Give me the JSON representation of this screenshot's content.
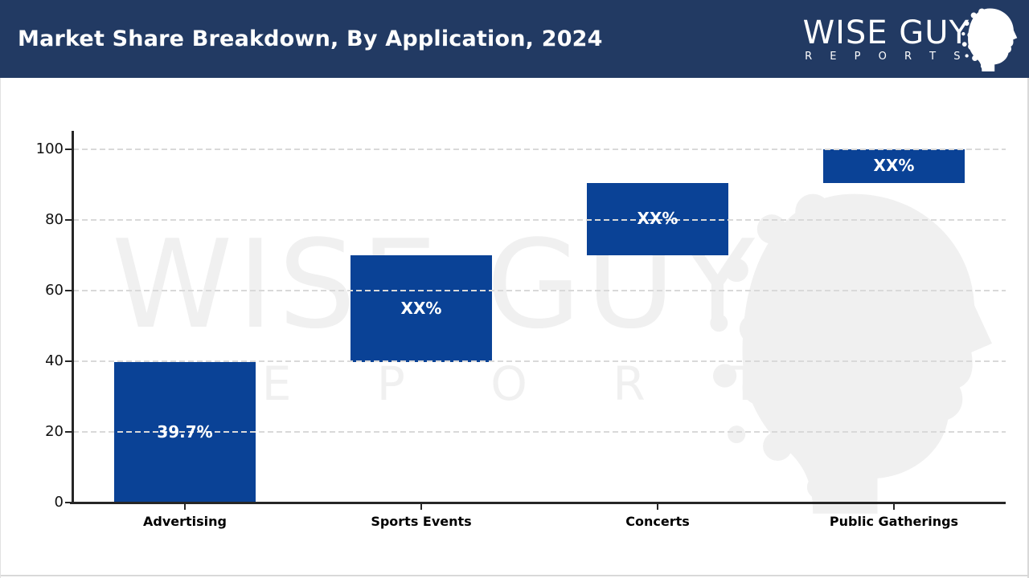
{
  "header": {
    "title": "Market Share Breakdown, By Application, 2024",
    "logo": {
      "line1": "WISE GUY",
      "line2": "R E P O R T S"
    }
  },
  "watermark": {
    "line1": "WISE GUY",
    "line2": "R E P O R T S"
  },
  "colors": {
    "header_bg": "#223A63",
    "bar": "#0A4296",
    "grid": "#D9D9D9",
    "axis": "#262626",
    "watermark": "#F0F0F0",
    "bar_label": "#FFFFFF"
  },
  "chart_data": {
    "type": "bar",
    "subtype": "waterfall",
    "title": "Market Share Breakdown, By Application, 2024",
    "xlabel": "",
    "ylabel": "",
    "ylim": [
      0,
      100
    ],
    "yticks": [
      0,
      20,
      40,
      60,
      80,
      100
    ],
    "grid": "dashed-horizontal",
    "legend": "none",
    "categories": [
      "Advertising",
      "Sports Events",
      "Concerts",
      "Public Gatherings"
    ],
    "segments": [
      {
        "category": "Advertising",
        "start": 0,
        "end": 39.7,
        "label": "39.7%"
      },
      {
        "category": "Sports Events",
        "start": 39.7,
        "end": 70,
        "label": "XX%"
      },
      {
        "category": "Concerts",
        "start": 70,
        "end": 90.5,
        "label": "XX%"
      },
      {
        "category": "Public Gatherings",
        "start": 90.5,
        "end": 100,
        "label": "XX%"
      }
    ]
  }
}
